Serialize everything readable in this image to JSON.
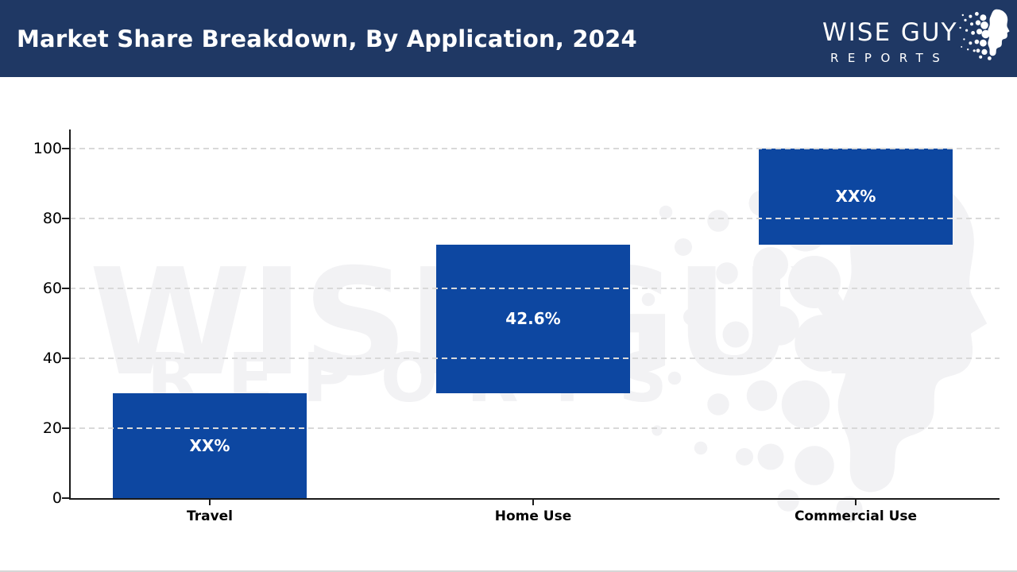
{
  "header": {
    "title": "Market Share Breakdown, By Application, 2024",
    "logo": {
      "name": "WISE GUY",
      "sub": "REPORTS"
    }
  },
  "watermark": {
    "name": "WISE GUY",
    "sub": "REPORTS"
  },
  "chart_data": {
    "type": "bar",
    "variant": "floating-segment-bars (waterfall-style market share breakdown)",
    "title": "Market Share Breakdown, By Application, 2024",
    "categories": [
      "Travel",
      "Home Use",
      "Commercial Use"
    ],
    "bars": [
      {
        "category": "Travel",
        "start": 0,
        "end": 30,
        "value_label": "XX%"
      },
      {
        "category": "Home Use",
        "start": 30,
        "end": 72.6,
        "value_label": "42.6%"
      },
      {
        "category": "Commercial Use",
        "start": 72.6,
        "end": 100,
        "value_label": "XX%"
      }
    ],
    "xlabel": "",
    "ylabel": "",
    "ylim": [
      0,
      100
    ],
    "yticks": [
      0,
      20,
      40,
      60,
      80,
      100
    ],
    "grid": "horizontal dashed gridlines drawn over bars",
    "legend": "none",
    "bar_color": "#0d47a1",
    "bar_label_color": "#ffffff"
  },
  "colors": {
    "header_bg": "#1f3864",
    "header_text": "#ffffff",
    "bar": "#0d47a1",
    "grid": "#d9d9d9",
    "axis": "#1a1a1a",
    "tick_text": "#000000",
    "watermark": "#f2f2f4",
    "page_bg": "#ffffff"
  }
}
